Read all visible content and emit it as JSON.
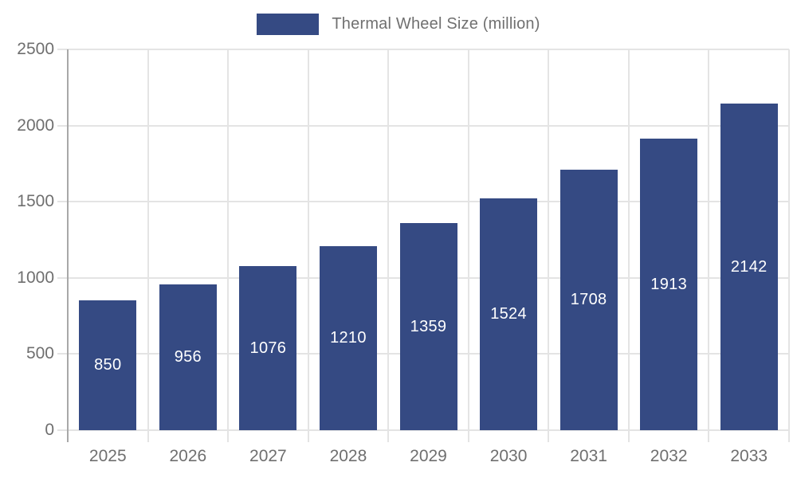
{
  "chart_data": {
    "type": "bar",
    "title": "Thermal Wheel Size (million)",
    "series_name": "Thermal Wheel Size (million)",
    "categories": [
      "2025",
      "2026",
      "2027",
      "2028",
      "2029",
      "2030",
      "2031",
      "2032",
      "2033"
    ],
    "values": [
      850,
      956,
      1076,
      1210,
      1359,
      1524,
      1708,
      1913,
      2142
    ],
    "xlabel": "",
    "ylabel": "",
    "ylim": [
      0,
      2500
    ],
    "yticks": [
      0,
      500,
      1000,
      1500,
      2000,
      2500
    ],
    "grid": true,
    "legend_position": "top",
    "value_labels": "inside-center"
  },
  "colors": {
    "bar": "#354A83",
    "value_label": "#FFFFFF",
    "gridline": "#E4E4E4",
    "axis_line": "#A8A8A8",
    "tick_label": "#6F6F6F",
    "legend_text": "#707070",
    "background": "#FFFFFF"
  }
}
